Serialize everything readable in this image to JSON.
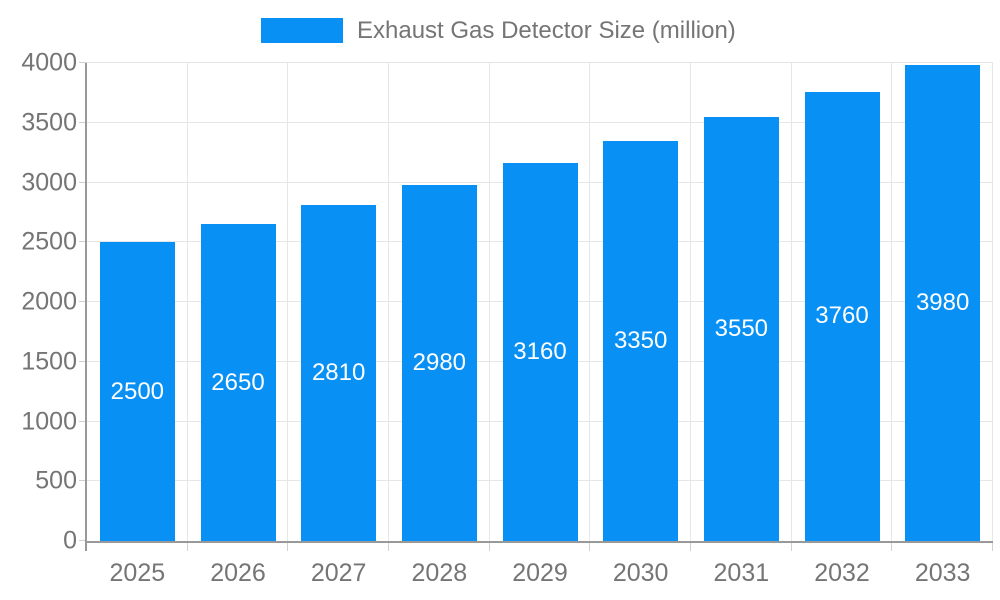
{
  "chart_data": {
    "type": "bar",
    "categories": [
      "2025",
      "2026",
      "2027",
      "2028",
      "2029",
      "2030",
      "2031",
      "2032",
      "2033"
    ],
    "values": [
      2500,
      2650,
      2810,
      2980,
      3160,
      3350,
      3550,
      3760,
      3980
    ],
    "series_name": "Exhaust Gas Detector Size (million)",
    "title": "",
    "xlabel": "",
    "ylabel": "",
    "ylim": [
      0,
      4000
    ],
    "ytick_step": 500,
    "ytick_labels": [
      "0",
      "500",
      "1000",
      "1500",
      "2000",
      "2500",
      "3000",
      "3500",
      "4000"
    ],
    "grid": true,
    "legend_position": "top",
    "bar_labels_shown": true
  },
  "legend": {
    "label": "Exhaust Gas Detector Size (million)"
  },
  "colors": {
    "bar": "#0890f5",
    "bar_value_label": "#ffffff",
    "axis_label": "#757575",
    "legend_label": "#757575",
    "grid_line": "#e6e6e6",
    "tick_line": "#d0d0d0",
    "axis_line": "#999999",
    "background": "#ffffff"
  }
}
